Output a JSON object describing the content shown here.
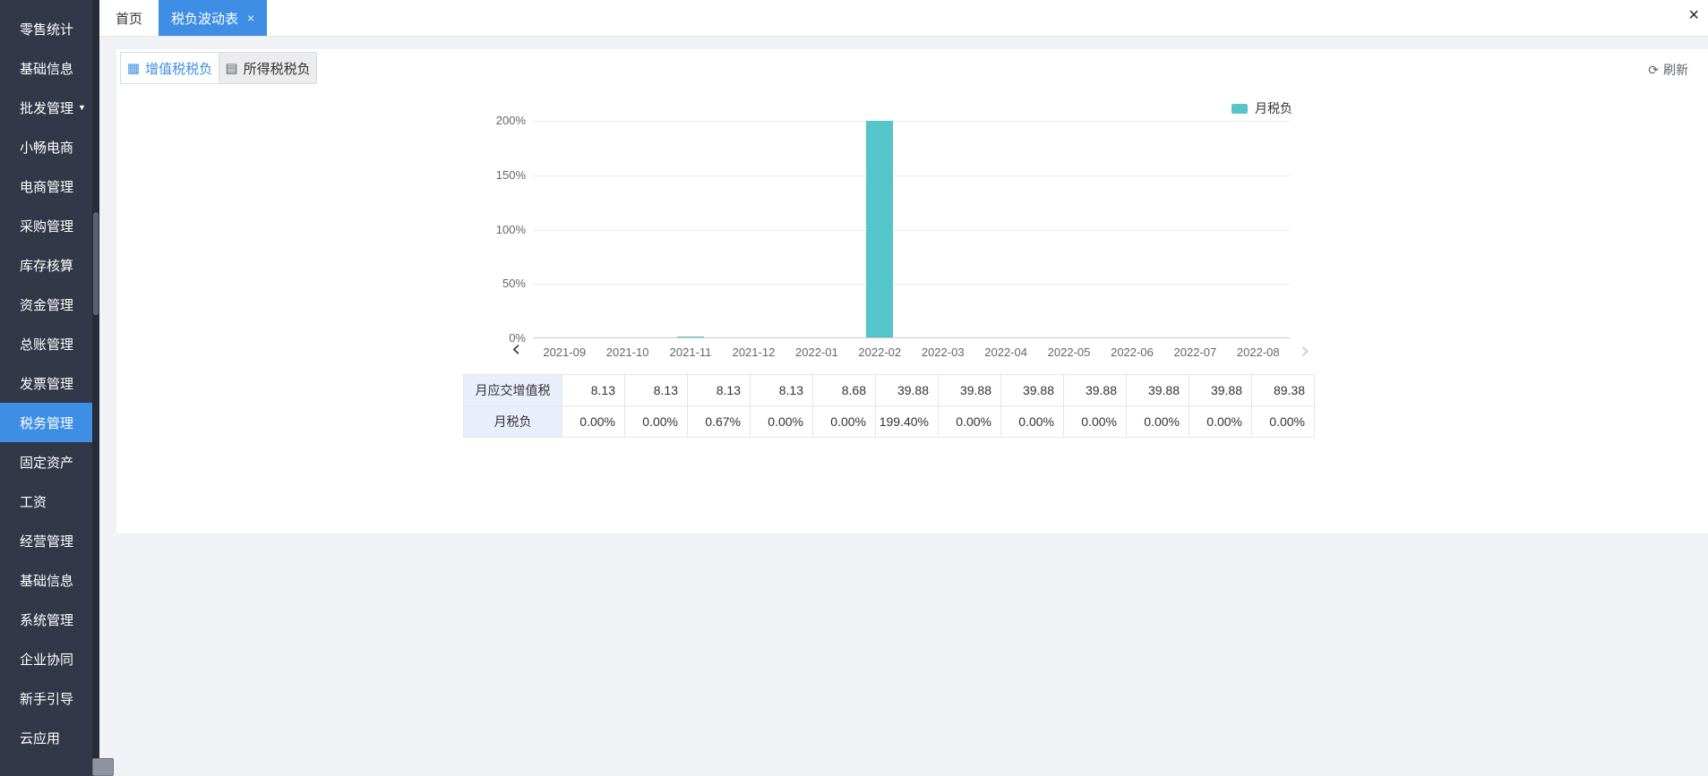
{
  "colors": {
    "accent_blue": "#3e8ee5",
    "bar_teal": "#54c5c8",
    "sidebar_bg": "#323848",
    "table_header_bg": "#e9effa"
  },
  "icons": {
    "close": "×",
    "tab_close": "×",
    "caret_down": "▼",
    "refresh": "⟳",
    "vat_tab": "▦",
    "income_tab": "▤",
    "prev_arrow": "‹",
    "next_arrow": "›"
  },
  "sidebar": {
    "items": [
      {
        "label": "零售统计"
      },
      {
        "label": "基础信息"
      },
      {
        "label": "批发管理",
        "caret": true
      },
      {
        "label": "小畅电商"
      },
      {
        "label": "电商管理"
      },
      {
        "label": "采购管理"
      },
      {
        "label": "库存核算"
      },
      {
        "label": "资金管理"
      },
      {
        "label": "总账管理"
      },
      {
        "label": "发票管理"
      },
      {
        "label": "税务管理",
        "active": true
      },
      {
        "label": "固定资产"
      },
      {
        "label": "工资"
      },
      {
        "label": "经营管理"
      },
      {
        "label": "基础信息"
      },
      {
        "label": "系统管理"
      },
      {
        "label": "企业协同"
      },
      {
        "label": "新手引导"
      },
      {
        "label": "云应用"
      }
    ]
  },
  "tabbar": {
    "home_label": "首页",
    "active_tab_label": "税负波动表"
  },
  "panel": {
    "subtabs": [
      {
        "label": "增值税税负",
        "active": true
      },
      {
        "label": "所得税税负",
        "active": false
      }
    ],
    "refresh_label": "刷新"
  },
  "chart_data": {
    "type": "bar",
    "title": "",
    "legend": [
      "月税负"
    ],
    "legend_position": "top-right",
    "grid": true,
    "categories": [
      "2021-09",
      "2021-10",
      "2021-11",
      "2021-12",
      "2022-01",
      "2022-02",
      "2022-03",
      "2022-04",
      "2022-05",
      "2022-06",
      "2022-07",
      "2022-08"
    ],
    "series": [
      {
        "name": "月税负",
        "values": [
          0.0,
          0.0,
          0.67,
          0.0,
          0.0,
          199.4,
          0.0,
          0.0,
          0.0,
          0.0,
          0.0,
          0.0
        ]
      }
    ],
    "xlabel": "",
    "ylabel": "",
    "ylim": [
      0,
      200
    ],
    "yticks": [
      "0%",
      "50%",
      "100%",
      "150%",
      "200%"
    ],
    "bar_color": "#54c5c8",
    "table": {
      "rows": [
        {
          "header": "月应交增值税",
          "values": [
            "8.13",
            "8.13",
            "8.13",
            "8.13",
            "8.68",
            "39.88",
            "39.88",
            "39.88",
            "39.88",
            "39.88",
            "39.88",
            "89.38"
          ]
        },
        {
          "header": "月税负",
          "values": [
            "0.00%",
            "0.00%",
            "0.67%",
            "0.00%",
            "0.00%",
            "199.40%",
            "0.00%",
            "0.00%",
            "0.00%",
            "0.00%",
            "0.00%",
            "0.00%"
          ]
        }
      ]
    }
  }
}
